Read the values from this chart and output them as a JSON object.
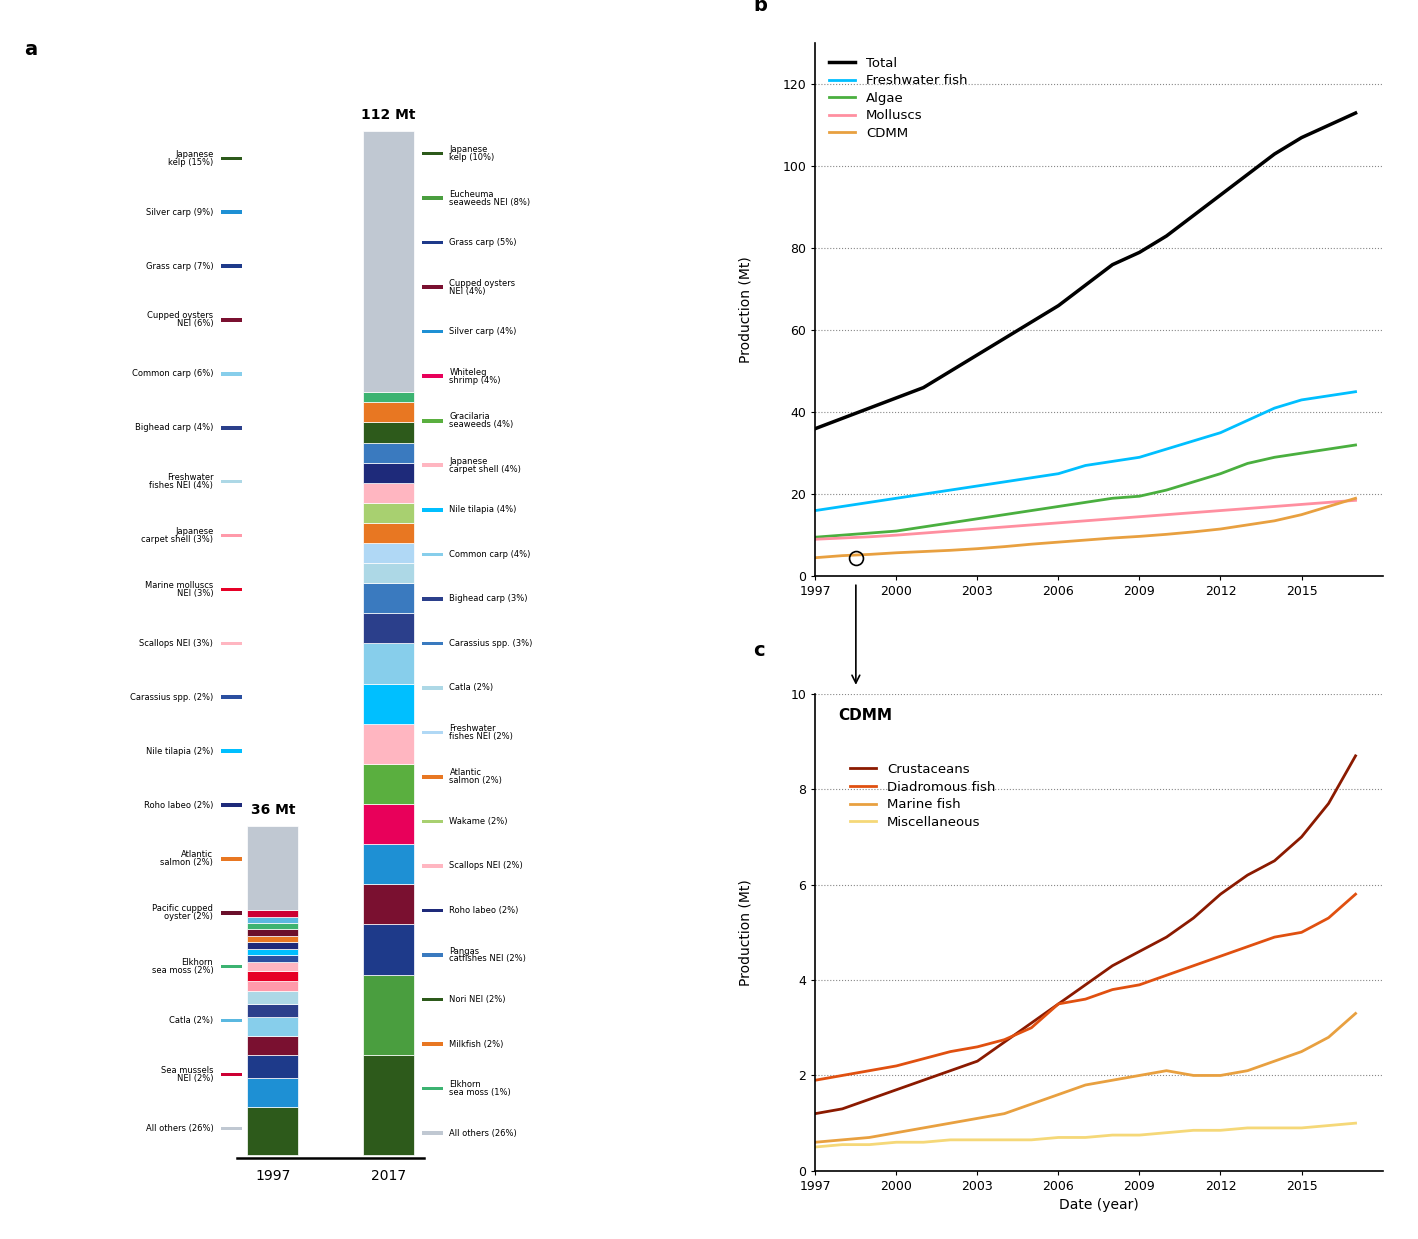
{
  "data_1997": [
    [
      "Japanese kelp",
      15,
      "#2d5a1b"
    ],
    [
      "Silver carp",
      9,
      "#1e90d4"
    ],
    [
      "Grass carp",
      7,
      "#1e3a8a"
    ],
    [
      "Cupped oysters NEI",
      6,
      "#7a1030"
    ],
    [
      "Common carp",
      6,
      "#87ceeb"
    ],
    [
      "Bighead carp",
      4,
      "#2b3f8b"
    ],
    [
      "Freshwater fishes NEI",
      4,
      "#add8e6"
    ],
    [
      "Japanese carpet shell",
      3,
      "#ff9aaa"
    ],
    [
      "Marine molluscs NEI",
      3,
      "#e60026"
    ],
    [
      "Scallops NEI",
      3,
      "#ffb6c1"
    ],
    [
      "Carassius spp.",
      2,
      "#2b4fa0"
    ],
    [
      "Nile tilapia",
      2,
      "#00bfff"
    ],
    [
      "Roho labeo",
      2,
      "#1e2a7a"
    ],
    [
      "Atlantic salmon",
      2,
      "#e87722"
    ],
    [
      "Pacific cupped oyster",
      2,
      "#6b0f2b"
    ],
    [
      "Elkhorn sea moss",
      2,
      "#3cb371"
    ],
    [
      "Catla",
      2,
      "#5ab8e0"
    ],
    [
      "Sea mussels NEI",
      2,
      "#cc0033"
    ],
    [
      "All others",
      26,
      "#c0c8d2"
    ]
  ],
  "data_2017": [
    [
      "Japanese kelp",
      10,
      "#2d5a1b"
    ],
    [
      "Eucheuma seaweeds NEI",
      8,
      "#4a9e3f"
    ],
    [
      "Grass carp",
      5,
      "#1e3a8a"
    ],
    [
      "Cupped oysters NEI",
      4,
      "#7a1030"
    ],
    [
      "Silver carp",
      4,
      "#1e90d4"
    ],
    [
      "Whiteleg shrimp",
      4,
      "#e8005a"
    ],
    [
      "Gracilaria seaweeds",
      4,
      "#5aaf3f"
    ],
    [
      "Japanese carpet shell",
      4,
      "#ffb6c1"
    ],
    [
      "Nile tilapia",
      4,
      "#00bfff"
    ],
    [
      "Common carp",
      4,
      "#87ceeb"
    ],
    [
      "Bighead carp",
      3,
      "#2b3f8b"
    ],
    [
      "Carassius spp.",
      3,
      "#3a7abf"
    ],
    [
      "Catla",
      2,
      "#add8e6"
    ],
    [
      "Freshwater fishes NEI",
      2,
      "#b0d8f5"
    ],
    [
      "Atlantic salmon",
      2,
      "#e87722"
    ],
    [
      "Wakame",
      2,
      "#a8d070"
    ],
    [
      "Scallops NEI",
      2,
      "#ffb6c1"
    ],
    [
      "Roho labeo",
      2,
      "#1e2a7a"
    ],
    [
      "Pangas catfishes NEI",
      2,
      "#3a7abf"
    ],
    [
      "Nori NEI",
      2,
      "#2d5a1b"
    ],
    [
      "Milkfish",
      2,
      "#e87722"
    ],
    [
      "Elkhorn sea moss",
      1,
      "#3cb371"
    ],
    [
      "All others",
      26,
      "#c0c8d2"
    ]
  ],
  "legend_1997": [
    [
      "Japanese\nkelp (15%)",
      "#2d5a1b"
    ],
    [
      "Silver carp (9%)",
      "#1e90d4"
    ],
    [
      "Grass carp (7%)",
      "#1e3a8a"
    ],
    [
      "Cupped oysters\nNEI (6%)",
      "#7a1030"
    ],
    [
      "Common carp (6%)",
      "#87ceeb"
    ],
    [
      "Bighead carp (4%)",
      "#2b3f8b"
    ],
    [
      "Freshwater\nfishes NEI (4%)",
      "#add8e6"
    ],
    [
      "Japanese\ncarpet shell (3%)",
      "#ff9aaa"
    ],
    [
      "Marine molluscs\nNEI (3%)",
      "#e60026"
    ],
    [
      "Scallops NEI (3%)",
      "#ffb6c1"
    ],
    [
      "Carassius spp. (2%)",
      "#2b4fa0"
    ],
    [
      "Nile tilapia (2%)",
      "#00bfff"
    ],
    [
      "Roho labeo (2%)",
      "#1e2a7a"
    ],
    [
      "Atlantic\nsalmon (2%)",
      "#e87722"
    ],
    [
      "Pacific cupped\noyster (2%)",
      "#6b0f2b"
    ],
    [
      "Elkhorn\nsea moss (2%)",
      "#3cb371"
    ],
    [
      "Catla (2%)",
      "#5ab8e0"
    ],
    [
      "Sea mussels\nNEI (2%)",
      "#cc0033"
    ],
    [
      "All others (26%)",
      "#c0c8d2"
    ]
  ],
  "legend_2017": [
    [
      "Japanese\nkelp (10%)",
      "#2d5a1b"
    ],
    [
      "Eucheuma\nseaweeds NEI (8%)",
      "#4a9e3f"
    ],
    [
      "Grass carp (5%)",
      "#1e3a8a"
    ],
    [
      "Cupped oysters\nNEI (4%)",
      "#7a1030"
    ],
    [
      "Silver carp (4%)",
      "#1e90d4"
    ],
    [
      "Whiteleg\nshrimp (4%)",
      "#e8005a"
    ],
    [
      "Gracilaria\nseaweeds (4%)",
      "#5aaf3f"
    ],
    [
      "Japanese\ncarpet shell (4%)",
      "#ffb6c1"
    ],
    [
      "Nile tilapia (4%)",
      "#00bfff"
    ],
    [
      "Common carp (4%)",
      "#87ceeb"
    ],
    [
      "Bighead carp (3%)",
      "#2b3f8b"
    ],
    [
      "Carassius spp. (3%)",
      "#3a7abf"
    ],
    [
      "Catla (2%)",
      "#add8e6"
    ],
    [
      "Freshwater\nfishes NEI (2%)",
      "#b0d8f5"
    ],
    [
      "Atlantic\nsalmon (2%)",
      "#e87722"
    ],
    [
      "Wakame (2%)",
      "#a8d070"
    ],
    [
      "Scallops NEI (2%)",
      "#ffb6c1"
    ],
    [
      "Roho labeo (2%)",
      "#1e2a7a"
    ],
    [
      "Pangas\ncatfishes NEI (2%)",
      "#3a7abf"
    ],
    [
      "Nori NEI (2%)",
      "#2d5a1b"
    ],
    [
      "Milkfish (2%)",
      "#e87722"
    ],
    [
      "Elkhorn\nsea moss (1%)",
      "#3cb371"
    ],
    [
      "All others (26%)",
      "#c0c8d2"
    ]
  ],
  "years": [
    1997,
    1998,
    1999,
    2000,
    2001,
    2002,
    2003,
    2004,
    2005,
    2006,
    2007,
    2008,
    2009,
    2010,
    2011,
    2012,
    2013,
    2014,
    2015,
    2016,
    2017
  ],
  "total_prod": [
    36,
    38.5,
    41,
    43.5,
    46,
    50,
    54,
    58,
    62,
    66,
    71,
    76,
    79,
    83,
    88,
    93,
    98,
    103,
    107,
    110,
    113
  ],
  "freshwater_fish": [
    16,
    17,
    18,
    19,
    20,
    21,
    22,
    23,
    24,
    25,
    27,
    28,
    29,
    31,
    33,
    35,
    38,
    41,
    43,
    44,
    45
  ],
  "algae": [
    9.5,
    10,
    10.5,
    11,
    12,
    13,
    14,
    15,
    16,
    17,
    18,
    19,
    19.5,
    21,
    23,
    25,
    27.5,
    29,
    30,
    31,
    32
  ],
  "molluscs": [
    9,
    9.3,
    9.6,
    10,
    10.5,
    11,
    11.5,
    12,
    12.5,
    13,
    13.5,
    14,
    14.5,
    15,
    15.5,
    16,
    16.5,
    17,
    17.5,
    18,
    18.5
  ],
  "cdmm": [
    4.5,
    5,
    5.3,
    5.7,
    6,
    6.3,
    6.7,
    7.2,
    7.8,
    8.3,
    8.8,
    9.3,
    9.7,
    10.2,
    10.8,
    11.5,
    12.5,
    13.5,
    15,
    17,
    19
  ],
  "crustaceans": [
    1.2,
    1.3,
    1.5,
    1.7,
    1.9,
    2.1,
    2.3,
    2.7,
    3.1,
    3.5,
    3.9,
    4.3,
    4.6,
    4.9,
    5.3,
    5.8,
    6.2,
    6.5,
    7.0,
    7.7,
    8.7
  ],
  "diadromous_fish": [
    1.9,
    2.0,
    2.1,
    2.2,
    2.35,
    2.5,
    2.6,
    2.75,
    3.0,
    3.5,
    3.6,
    3.8,
    3.9,
    4.1,
    4.3,
    4.5,
    4.7,
    4.9,
    5.0,
    5.3,
    5.8
  ],
  "marine_fish": [
    0.6,
    0.65,
    0.7,
    0.8,
    0.9,
    1.0,
    1.1,
    1.2,
    1.4,
    1.6,
    1.8,
    1.9,
    2.0,
    2.1,
    2.0,
    2.0,
    2.1,
    2.3,
    2.5,
    2.8,
    3.3
  ],
  "miscellaneous": [
    0.5,
    0.55,
    0.55,
    0.6,
    0.6,
    0.65,
    0.65,
    0.65,
    0.65,
    0.7,
    0.7,
    0.75,
    0.75,
    0.8,
    0.85,
    0.85,
    0.9,
    0.9,
    0.9,
    0.95,
    1.0
  ]
}
